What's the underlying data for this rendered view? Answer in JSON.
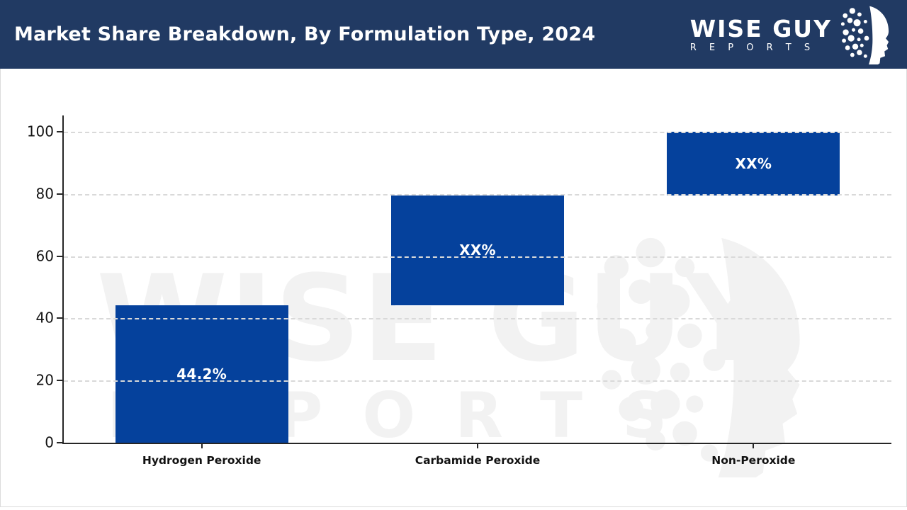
{
  "header": {
    "title": "Market Share Breakdown, By Formulation Type, 2024",
    "logo": {
      "line1": "WISE GUY",
      "line2": "R E P O R T S"
    }
  },
  "watermark": {
    "line1": "WISE GUY",
    "line2": "REPORTS"
  },
  "colors": {
    "header_bg": "#213a63",
    "bar_blue": "#05419c",
    "gridline": "#d9d9d9",
    "axis": "#262626",
    "watermark": "#f2f2f2"
  },
  "chart_data": {
    "type": "bar",
    "subtype": "stacked-waterfall-percent",
    "title": "Market Share Breakdown, By Formulation Type, 2024",
    "categories": [
      "Hydrogen Peroxide",
      "Carbamide Peroxide",
      "Non-Peroxide"
    ],
    "segments": [
      {
        "category": "Hydrogen Peroxide",
        "start": 0,
        "end": 44.2,
        "label": "44.2%"
      },
      {
        "category": "Carbamide Peroxide",
        "start": 44.2,
        "end": 79.5,
        "label": "XX%"
      },
      {
        "category": "Non-Peroxide",
        "start": 79.5,
        "end": 100,
        "label": "XX%"
      }
    ],
    "xlabel": "",
    "ylabel": "",
    "ylim": [
      0,
      100
    ],
    "yticks": [
      0,
      20,
      40,
      60,
      80,
      100
    ],
    "grid": true,
    "gridline_style": "dashed",
    "legend": "none"
  }
}
